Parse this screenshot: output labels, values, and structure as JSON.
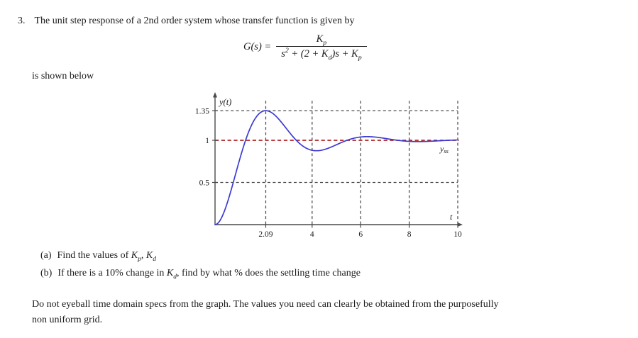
{
  "page": {
    "background": "#ffffff",
    "text_color": "#1b1b1b"
  },
  "problem": {
    "number": "3.",
    "statement": "The unit step response of a 2nd order system whose transfer function is given by",
    "shown_below": "is shown below"
  },
  "formula": {
    "lhs": "G(s) =",
    "num_base": "K",
    "num_sub": "p",
    "den_s": "s",
    "den_exp": "2",
    "den_mid": " + (2 + K",
    "den_sub1": "d",
    "den_tail": ")s + K",
    "den_sub2": "p"
  },
  "questions": {
    "a": {
      "label": "(a)",
      "pre": "Find the values of ",
      "k1": "K",
      "k1_sub": "p",
      "sep": ", ",
      "k2": "K",
      "k2_sub": "d"
    },
    "b": {
      "label": "(b)",
      "pre": "If there is a 10% change in ",
      "k": "K",
      "k_sub": "d",
      "post": ", find by what % does the settling time change"
    }
  },
  "note": {
    "line1": "Do not eyeball time domain specs from the graph.  The values you need can clearly be obtained from the purposefully",
    "line2": "non uniform grid."
  },
  "chart_data": {
    "type": "line",
    "title": "",
    "xlabel": "t",
    "ylabel": "y(t)",
    "xlim": [
      0,
      10.3
    ],
    "ylim": [
      0,
      1.55
    ],
    "x_ticks": [
      2.09,
      4,
      6,
      8,
      10
    ],
    "x_tick_labels": [
      "2.09",
      "4",
      "6",
      "8",
      "10"
    ],
    "y_ticks": [
      0.5,
      1,
      1.35
    ],
    "y_tick_labels": [
      "0.5",
      "1",
      "1.35"
    ],
    "grid": {
      "style": "dashed",
      "color": "#4a4a4a",
      "vertical_at": [
        2.09,
        4,
        6,
        8,
        10
      ],
      "horizontal_at": [
        0.5,
        1.35
      ]
    },
    "axis_color": "#4a4a4a",
    "reference_line": {
      "y": 1,
      "color": "#b22222",
      "style": "dashed",
      "label_base": "y",
      "label_sub": "ss"
    },
    "series": [
      {
        "name": "unit step response y(t)",
        "color": "#3b3bd1",
        "model": {
          "formula": "y(t) = 1 - exp(-sigma*t)*(cos(omega_d*t) + (sigma/omega_d)*sin(omega_d*t))",
          "sigma": 0.5,
          "omega_d": 1.5033,
          "t_start": 0,
          "t_end": 10,
          "dt": 0.04
        },
        "key_points": [
          {
            "t": 0,
            "y": 0
          },
          {
            "t": 0.5,
            "y": 0.254
          },
          {
            "t": 1.0,
            "y": 0.758
          },
          {
            "t": 1.5,
            "y": 1.177
          },
          {
            "t": 2.09,
            "y": 1.35
          },
          {
            "t": 3.0,
            "y": 1.118
          },
          {
            "t": 3.5,
            "y": 0.959
          },
          {
            "t": 4.18,
            "y": 0.876
          },
          {
            "t": 5.0,
            "y": 0.946
          },
          {
            "t": 5.5,
            "y": 1.006
          },
          {
            "t": 6.27,
            "y": 1.044
          },
          {
            "t": 7.5,
            "y": 1.001
          },
          {
            "t": 8.36,
            "y": 0.985
          },
          {
            "t": 9.5,
            "y": 0.998
          },
          {
            "t": 10,
            "y": 1.004
          }
        ],
        "peak": {
          "t": 2.09,
          "y": 1.35
        },
        "steady_state": 1.0
      }
    ]
  }
}
